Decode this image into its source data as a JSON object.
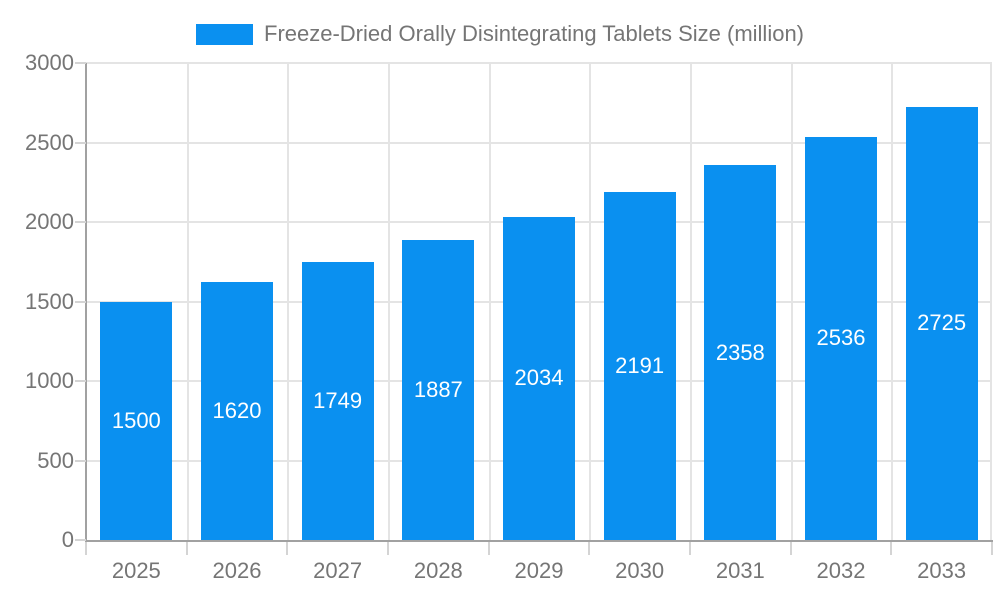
{
  "chart_data": {
    "type": "bar",
    "title": "Freeze-Dried Orally Disintegrating Tablets Size (million)",
    "categories": [
      "2025",
      "2026",
      "2027",
      "2028",
      "2029",
      "2030",
      "2031",
      "2032",
      "2033"
    ],
    "values": [
      1500,
      1620,
      1749,
      1887,
      2034,
      2191,
      2358,
      2536,
      2725
    ],
    "xlabel": "",
    "ylabel": "",
    "ylim": [
      0,
      3000
    ],
    "yticks": [
      0,
      500,
      1000,
      1500,
      2000,
      2500,
      3000
    ],
    "grid": true,
    "legend_position": "top",
    "bar_labels_inside": true,
    "colors": {
      "bar": "#0a90f0",
      "bar_label_text": "#ffffff",
      "axis_text": "#757575",
      "grid_line": "#e4e4e4",
      "axis_line": "#a1a1a1",
      "tick_line": "#d4d4d4"
    }
  }
}
